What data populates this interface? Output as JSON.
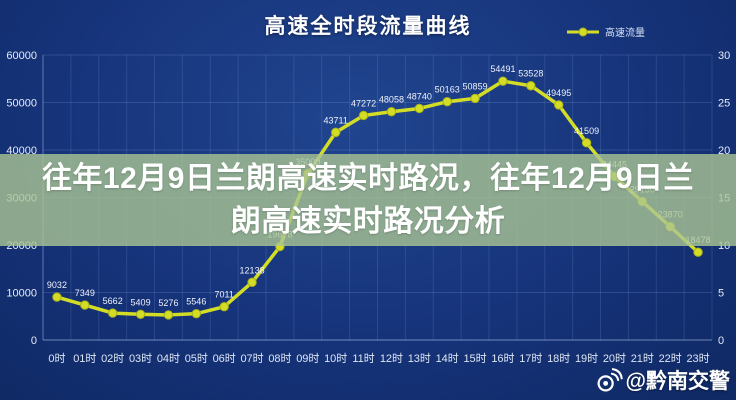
{
  "title": "高速全时段流量曲线",
  "legend": {
    "label": "高速流量"
  },
  "overlay_banner": {
    "text": "往年12月9日兰朗高速实时路况，往年12月9日兰朗高速实时路况分析"
  },
  "watermark": {
    "text": "@黔南交警",
    "icon": "weibo-icon"
  },
  "chart_data": {
    "type": "line",
    "title": "高速全时段流量曲线",
    "x": [
      "0时",
      "01时",
      "02时",
      "03时",
      "04时",
      "05时",
      "06时",
      "07时",
      "08时",
      "09时",
      "10时",
      "11时",
      "12时",
      "13时",
      "14时",
      "15时",
      "16时",
      "17时",
      "18时",
      "19时",
      "20时",
      "21时",
      "22时",
      "23时"
    ],
    "series": [
      {
        "name": "高速流量",
        "values": [
          9032,
          7349,
          5662,
          5409,
          5276,
          5546,
          7011,
          12138,
          19678,
          35000,
          43711,
          47272,
          48058,
          48740,
          50163,
          50859,
          54491,
          53528,
          49495,
          41509,
          34445,
          29150,
          23870,
          18478
        ]
      }
    ],
    "left_axis": {
      "ticks": [
        0,
        10000,
        20000,
        30000,
        40000,
        50000,
        60000
      ],
      "max": 60000
    },
    "right_axis": {
      "ticks": [
        0,
        5,
        10,
        15,
        20,
        25,
        30
      ],
      "max": 30
    },
    "legend_position": "top-right",
    "grid": true,
    "colors": {
      "line": "#d4dd26",
      "marker_edge": "#a9b118",
      "background": "#16337a",
      "grid_line": "rgba(140,170,230,0.22)",
      "axis_line": "rgba(190,210,245,0.55)",
      "tick_text": "#e6ecf8",
      "point_label_text": "#eef2fb",
      "banner": "rgba(170,198,147,0.80)"
    }
  }
}
